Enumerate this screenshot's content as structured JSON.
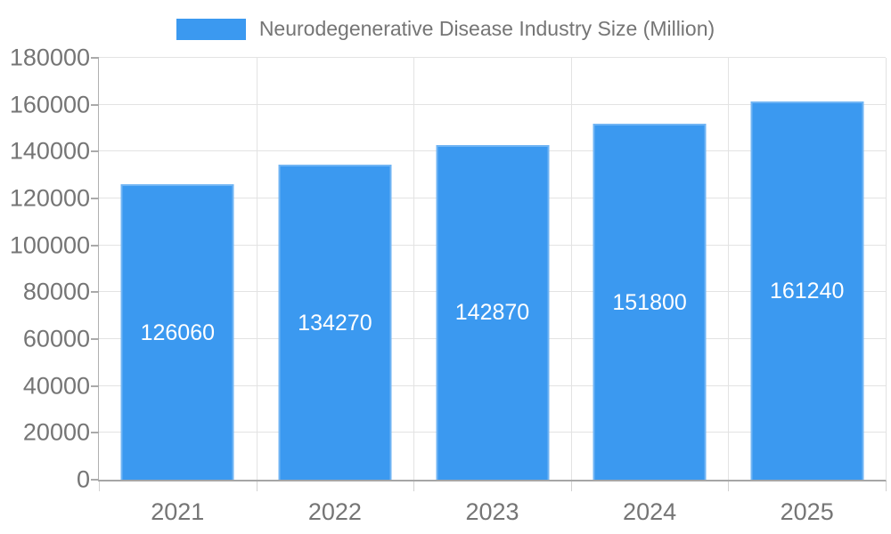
{
  "legend": {
    "label": "Neurodegenerative Disease Industry Size (Million)"
  },
  "chart_data": {
    "type": "bar",
    "title": "Neurodegenerative Disease Industry Size (Million)",
    "categories": [
      "2021",
      "2022",
      "2023",
      "2024",
      "2025"
    ],
    "values": [
      126060,
      134270,
      142870,
      151800,
      161240
    ],
    "bar_labels": [
      "126060",
      "134270",
      "142870",
      "151800",
      "161240"
    ],
    "xlabel": "",
    "ylabel": "",
    "ylim": [
      0,
      180000
    ],
    "yticks": [
      0,
      20000,
      40000,
      60000,
      80000,
      100000,
      120000,
      140000,
      160000,
      180000
    ],
    "grid": true,
    "legend_position": "top",
    "colors": {
      "bar": "#3B99F0",
      "bar_label_text": "#ffffff",
      "axis_label": "#757575",
      "grid_line": "#e3e3e3",
      "axis_line": "#b0b0b0"
    }
  }
}
